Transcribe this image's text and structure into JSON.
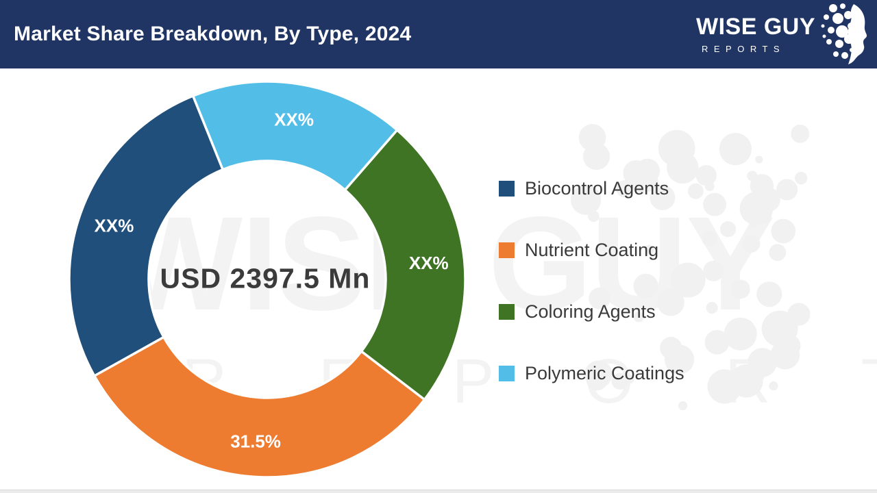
{
  "header": {
    "title": "Market Share Breakdown, By Type, 2024",
    "bg_color": "#213564",
    "logo": {
      "line1": "WISE GUY",
      "line2": "R E P O R T S"
    }
  },
  "chart_data": {
    "type": "pie",
    "donut": true,
    "title": "Market Share Breakdown, By Type, 2024",
    "center_label": "USD 2397.5 Mn",
    "start_angle_deg": 112,
    "direction": "counterclockwise",
    "legend_position": "right",
    "segments": [
      {
        "name": "Biocontrol Agents",
        "label": "XX%",
        "value_pct": 27.0,
        "color": "#204F7B"
      },
      {
        "name": "Nutrient Coating",
        "label": "31.5%",
        "value_pct": 31.5,
        "color": "#ED7C31"
      },
      {
        "name": "Coloring Agents",
        "label": "XX%",
        "value_pct": 24.0,
        "color": "#3E7423"
      },
      {
        "name": "Polymeric Coatings",
        "label": "XX%",
        "value_pct": 17.5,
        "color": "#52BEE8"
      }
    ]
  },
  "watermark": {
    "line1": "WISE GUY",
    "line2": "R E P O R T S"
  }
}
